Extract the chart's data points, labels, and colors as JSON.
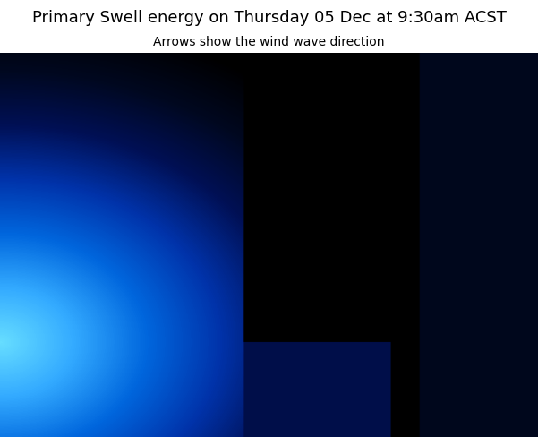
{
  "title": "Primary Swell energy on Thursday 05 Dec at 9:30am ACST",
  "subtitle": "Arrows show the wind wave direction",
  "title_fontsize": 13,
  "subtitle_fontsize": 10,
  "fig_width": 6.01,
  "fig_height": 4.88,
  "dpi": 100,
  "background_color": "#000000",
  "header_color": "#f0f0f0",
  "ocean_deep_color": "#0033cc",
  "ocean_mid_color": "#0066ff",
  "ocean_light_color": "#33aaff",
  "land_color": "#888888",
  "arrow_color": "#00ffee",
  "map_extent": [
    105,
    160,
    -48,
    5
  ],
  "border_color": "#000000",
  "border_linewidth": 0.5,
  "state_border_color": "#222222",
  "state_border_linewidth": 0.5
}
